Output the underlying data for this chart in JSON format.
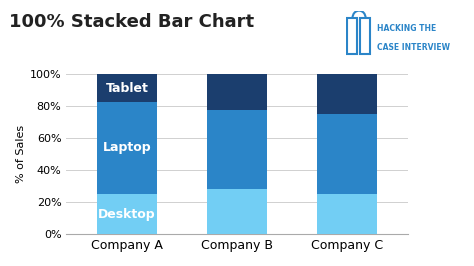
{
  "title": "100% Stacked Bar Chart",
  "ylabel": "% of Sales",
  "categories": [
    "Company A",
    "Company B",
    "Company C"
  ],
  "series": {
    "Desktop": [
      25,
      28,
      25
    ],
    "Laptop": [
      58,
      50,
      50
    ],
    "Tablet": [
      17,
      22,
      25
    ]
  },
  "colors": {
    "Desktop": "#72cef4",
    "Laptop": "#2b85c8",
    "Tablet": "#1b3e6e"
  },
  "bar_labels": {
    "Desktop": "Desktop",
    "Laptop": "Laptop",
    "Tablet": "Tablet"
  },
  "label_bar_index": 0,
  "yticks": [
    0,
    20,
    40,
    60,
    80,
    100
  ],
  "ytick_labels": [
    "0%",
    "20%",
    "40%",
    "60%",
    "80%",
    "100%"
  ],
  "background_color": "#ffffff",
  "title_fontsize": 13,
  "label_fontsize": 9,
  "bar_width": 0.55,
  "logo_text_line1": "HACKING THE",
  "logo_text_line2": "CASE INTERVIEW",
  "logo_color": "#2b85c8",
  "grid_color": "#d0d0d0",
  "axis_color": "#aaaaaa",
  "tick_label_fontsize": 8,
  "xlabel_fontsize": 9
}
